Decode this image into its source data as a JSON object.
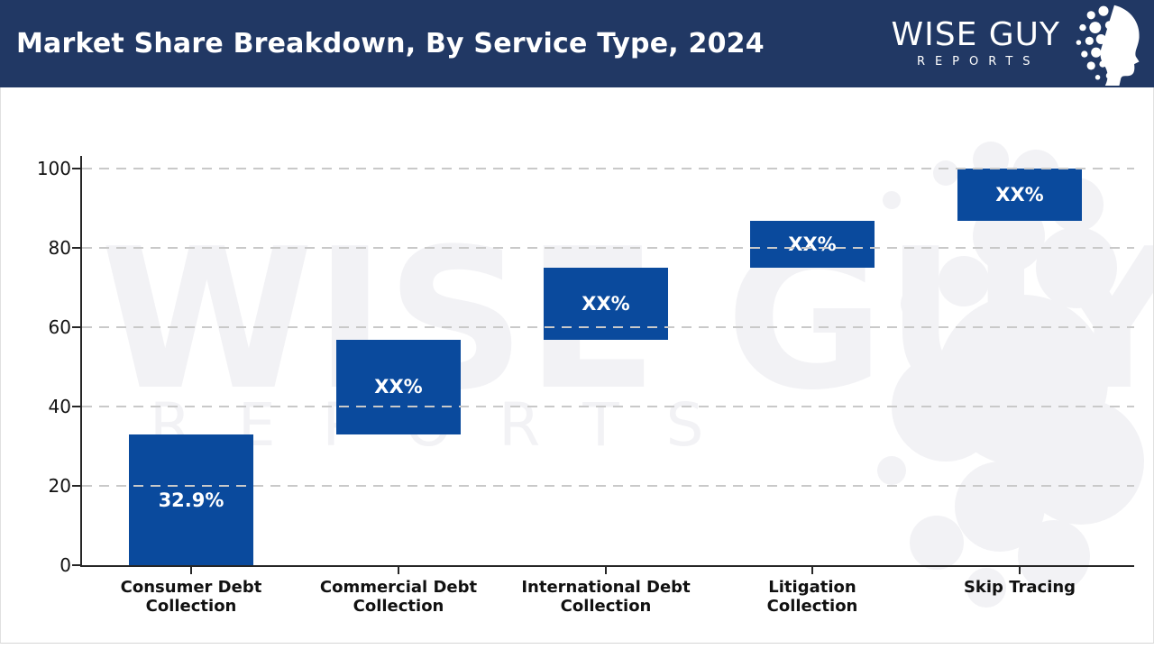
{
  "header": {
    "title": "Market Share Breakdown, By Service Type, 2024",
    "logo": {
      "brand": "WISE GUY",
      "sub": "REPORTS"
    }
  },
  "watermark": {
    "brand": "WISE GUY",
    "sub": "REPORTS"
  },
  "chart_data": {
    "type": "bar",
    "subtype": "waterfall",
    "title": "Market Share Breakdown, By Service Type, 2024",
    "categories": [
      "Consumer Debt Collection",
      "Commercial Debt Collection",
      "International Debt Collection",
      "Litigation Collection",
      "Skip Tracing"
    ],
    "series": [
      {
        "name": "Market share (%)",
        "values": [
          32.9,
          24.0,
          18.1,
          11.8,
          13.2
        ]
      }
    ],
    "bar_labels": [
      "32.9%",
      "XX%",
      "XX%",
      "XX%",
      "XX%"
    ],
    "yticks": [
      0,
      20,
      40,
      60,
      80,
      100
    ],
    "ylim": [
      0,
      100
    ],
    "grid": "horizontal-dashed-above-bars",
    "legend": "none",
    "colors": {
      "bar": "#0a4a9d",
      "header_bg": "#213864",
      "grid": "#c9c9c9",
      "axis": "#262626",
      "watermark": "#f2f2f5"
    }
  }
}
